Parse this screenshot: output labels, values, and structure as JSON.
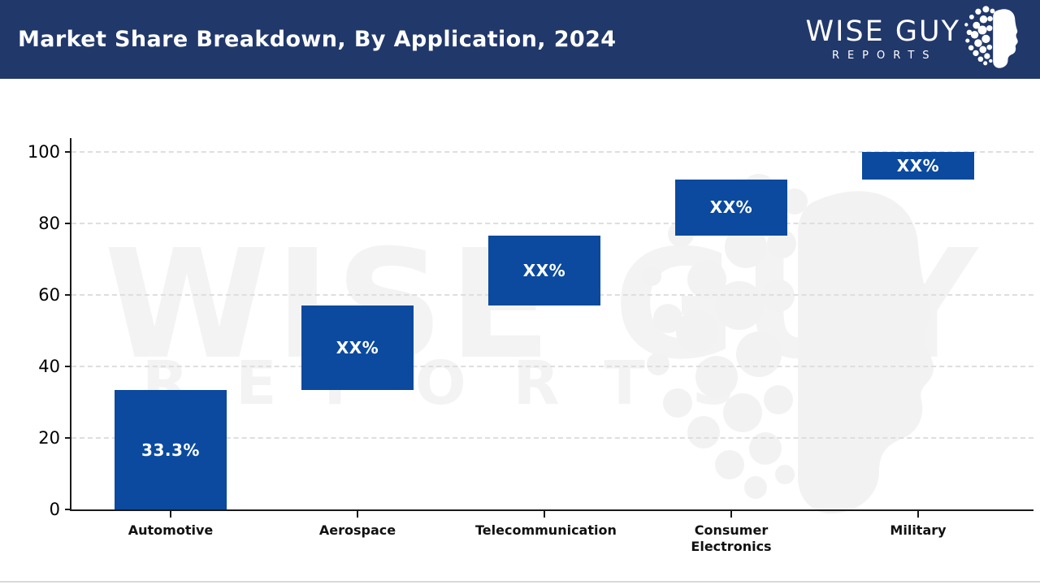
{
  "header": {
    "title": "Market Share Breakdown, By Application, 2024",
    "logo": {
      "line1": "WISE GUY",
      "line2": "REPORTS"
    }
  },
  "watermark": {
    "line1": "WISE GUY",
    "line2": "REPORTS"
  },
  "colors": {
    "header_bg": "#21386b",
    "bar": "#0b4a9e",
    "grid": "#dedede",
    "axis": "#1a1a1a",
    "watermark": "#f3f3f3",
    "label_text": "#ffffff"
  },
  "chart_data": {
    "type": "bar",
    "subtype": "waterfall",
    "title": "Market Share Breakdown, By Application, 2024",
    "categories": [
      "Automotive",
      "Aerospace",
      "Telecommunication",
      "Consumer Electronics",
      "Military"
    ],
    "segments": [
      {
        "category": "Automotive",
        "start": 0,
        "end": 33.3,
        "label": "33.3%"
      },
      {
        "category": "Aerospace",
        "start": 33.3,
        "end": 57.0,
        "label": "XX%"
      },
      {
        "category": "Telecommunication",
        "start": 57.0,
        "end": 76.6,
        "label": "XX%"
      },
      {
        "category": "Consumer Electronics",
        "start": 76.6,
        "end": 92.3,
        "label": "XX%"
      },
      {
        "category": "Military",
        "start": 92.3,
        "end": 100,
        "label": "XX%"
      }
    ],
    "xlabel": "",
    "ylabel": "",
    "ylim": [
      0,
      100
    ],
    "yticks": [
      0,
      20,
      40,
      60,
      80,
      100
    ],
    "grid": "horizontal-dashed",
    "legend": "none"
  }
}
